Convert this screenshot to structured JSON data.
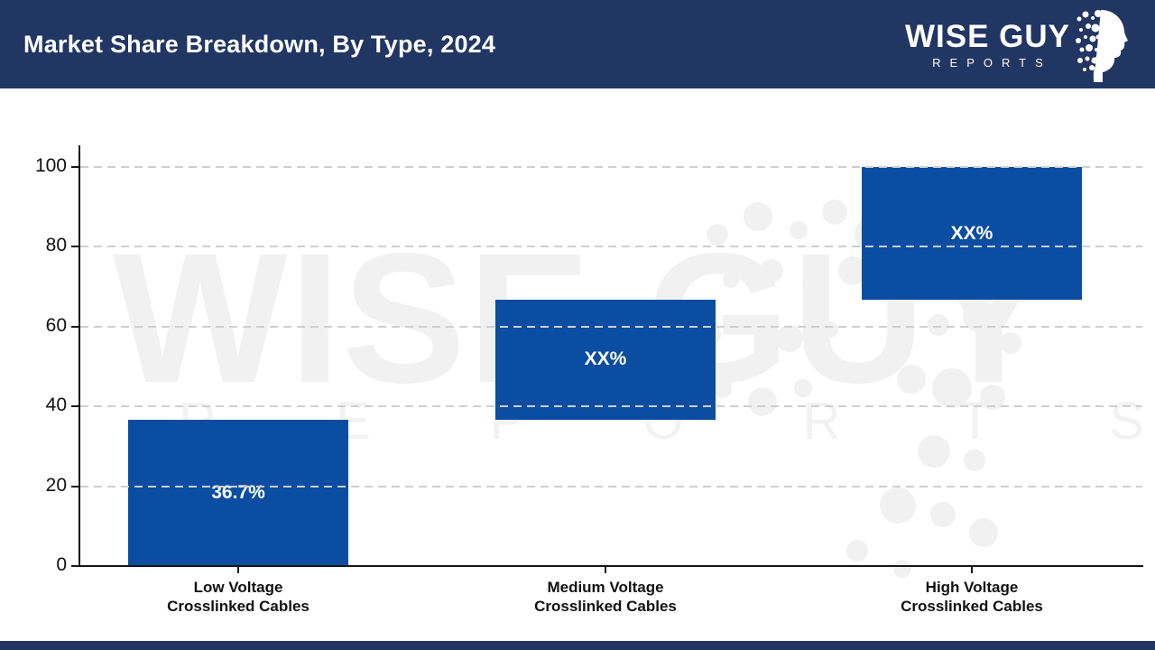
{
  "header": {
    "title": "Market Share Breakdown, By Type, 2024",
    "logo": {
      "line1": "WISE GUY",
      "line2": "REPORTS"
    }
  },
  "watermark": {
    "line1": "WISE GUY",
    "line2": "R E P O R T S"
  },
  "colors": {
    "header_bg": "#213663",
    "footer_bg": "#213663",
    "bar": "#0b4da1",
    "bar_label": "#ffffff",
    "gridline": "#cfcfcf",
    "axis": "#161616",
    "watermark": "#f1f1f1"
  },
  "chart_data": {
    "type": "bar",
    "subtype": "stacked-waterfall",
    "title": "Market Share Breakdown, By Type, 2024",
    "categories": [
      "Low Voltage Crosslinked Cables",
      "Medium Voltage Crosslinked Cables",
      "High Voltage Crosslinked Cables"
    ],
    "category_lines": [
      [
        "Low Voltage",
        "Crosslinked Cables"
      ],
      [
        "Medium Voltage",
        "Crosslinked Cables"
      ],
      [
        "High Voltage",
        "Crosslinked Cables"
      ]
    ],
    "segments": [
      {
        "category": "Low Voltage Crosslinked Cables",
        "start": 0,
        "end": 36.7,
        "value": 36.7,
        "label": "36.7%"
      },
      {
        "category": "Medium Voltage Crosslinked Cables",
        "start": 36.7,
        "end": 66.7,
        "value": 30.0,
        "label": "XX%"
      },
      {
        "category": "High Voltage Crosslinked Cables",
        "start": 66.7,
        "end": 100,
        "value": 33.3,
        "label": "XX%"
      }
    ],
    "xlabel": "",
    "ylabel": "",
    "ylim": [
      0,
      100
    ],
    "yticks": [
      0,
      20,
      40,
      60,
      80,
      100
    ],
    "grid": "horizontal-dashed",
    "legend": "none"
  }
}
